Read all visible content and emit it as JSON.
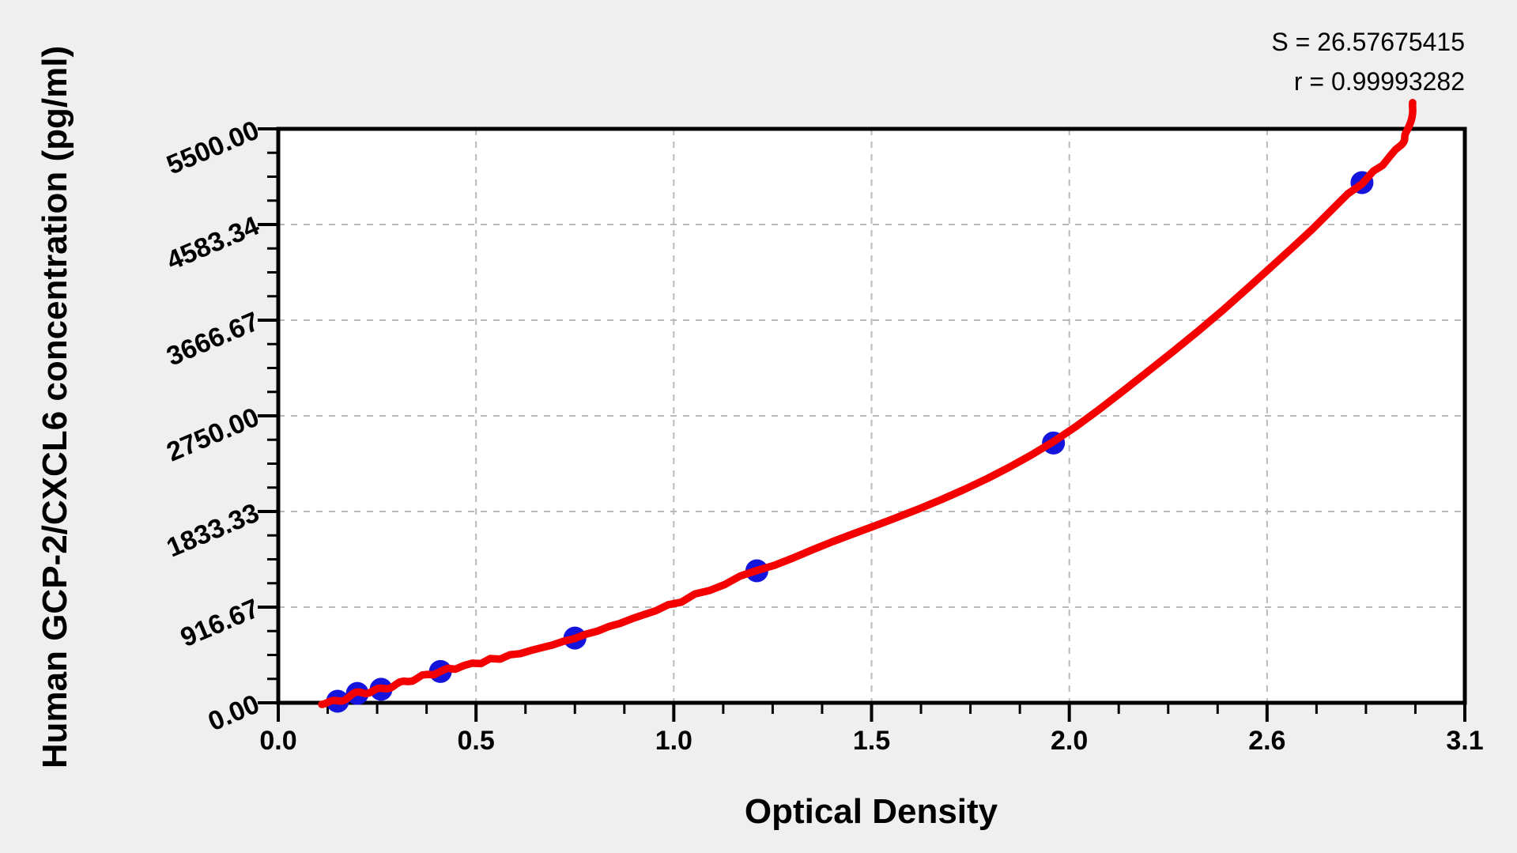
{
  "chart_data": {
    "type": "scatter",
    "title": "",
    "xlabel": "Optical Density",
    "ylabel": "Human GCP-2/CXCL6 concentration (pg/ml)",
    "ylim": [
      0,
      5500
    ],
    "x_ticks": {
      "labels": [
        "0.0",
        "0.5",
        "1.0",
        "1.5",
        "2.0",
        "2.6",
        "3.1"
      ],
      "values": [
        0.0,
        0.5,
        1.0,
        1.5,
        2.0,
        2.6,
        3.1
      ]
    },
    "y_ticks": {
      "labels": [
        "0.00",
        "916.67",
        "1833.33",
        "2750.00",
        "3666.67",
        "4583.34",
        "5500.00"
      ],
      "values": [
        0,
        916.67,
        1833.33,
        2750.0,
        3666.67,
        4583.34,
        5500.0
      ]
    },
    "grid": {
      "style": "dashed",
      "on": "major-both",
      "color": "#b9b9b9"
    },
    "series": [
      {
        "name": "standard-points",
        "type": "scatter",
        "marker": "circle",
        "color": "#1414dd",
        "x": [
          0.15,
          0.2,
          0.26,
          0.41,
          0.75,
          1.21,
          1.96,
          2.84
        ],
        "y": [
          15,
          90,
          130,
          300,
          620,
          1265,
          2490,
          4985
        ]
      },
      {
        "name": "fitted-curve",
        "type": "line",
        "color": "#f40000",
        "x": [
          0.11,
          0.15,
          0.2,
          0.26,
          0.41,
          0.75,
          1.21,
          1.96,
          2.84,
          2.954,
          2.968
        ],
        "y": [
          0,
          15,
          90,
          130,
          300,
          620,
          1265,
          2490,
          4985,
          5500,
          5745
        ]
      }
    ],
    "annotations": [
      "S = 26.57675415",
      "r = 0.99993282"
    ],
    "colors": {
      "background": "#efefef",
      "plot_background": "#ffffff",
      "axis": "#000000",
      "curve": "#f40000",
      "points": "#1414dd",
      "grid": "#b9b9b9"
    }
  }
}
